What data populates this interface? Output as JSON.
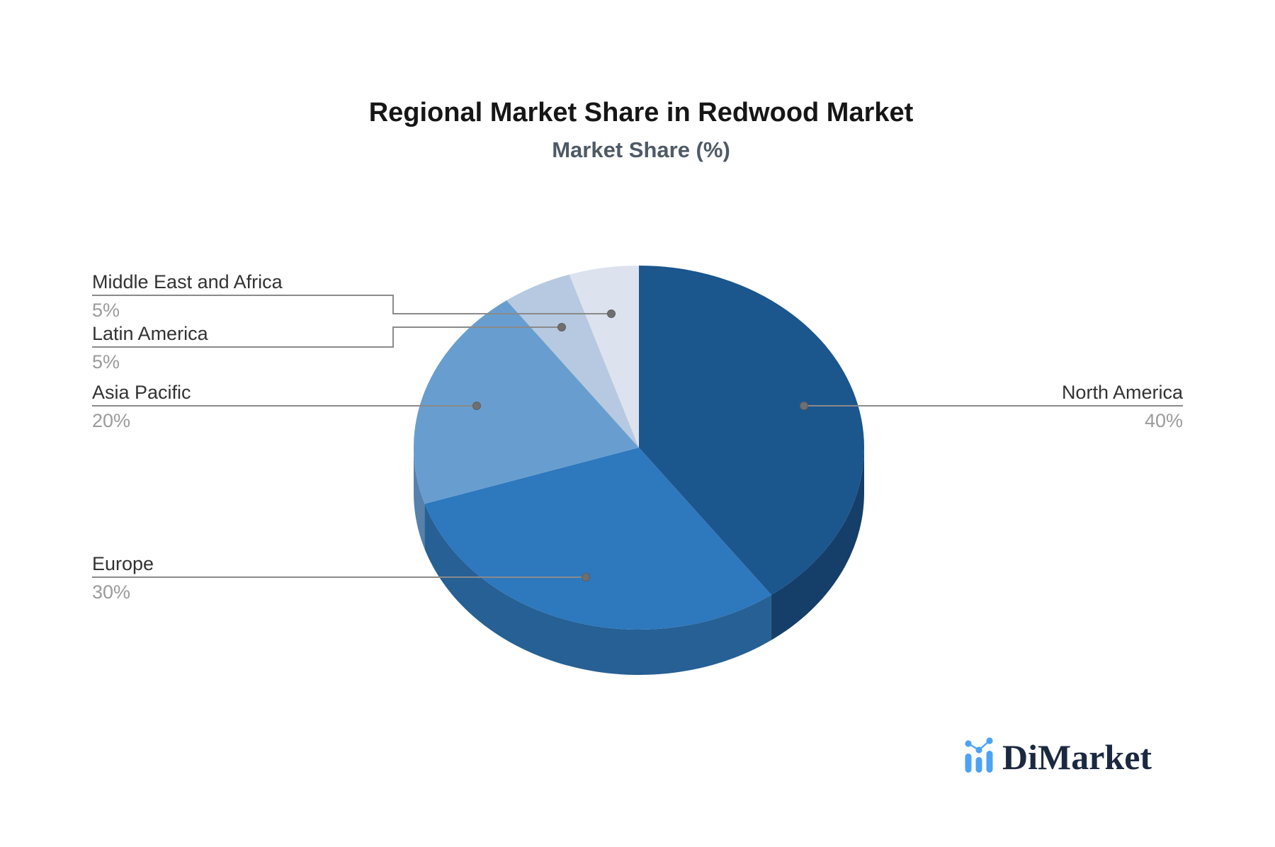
{
  "title": "Regional Market Share in Redwood Market",
  "subtitle": "Market Share (%)",
  "logo": {
    "text": "DiMarket",
    "icon": "bar-chart-trend-icon",
    "icon_color": "#4da3f3",
    "text_color": "#1b2940"
  },
  "palette": {
    "background": "#ffffff",
    "title_color": "#161616",
    "subtitle_color": "#4e5a66",
    "label_color": "#323232",
    "value_color": "#9b9b9b",
    "leader_line_color": "#8a8a8a",
    "leader_dot_color": "#6f6f6f"
  },
  "chart_data": {
    "type": "pie",
    "style": "3d",
    "title": "Regional Market Share in Redwood Market",
    "subtitle": "Market Share (%)",
    "unit": "%",
    "start_angle_deg": 0,
    "direction": "clockwise",
    "legend_position": "callout-labels",
    "series": [
      {
        "label": "North America",
        "value": 40,
        "pct_label": "40%",
        "color": "#1b568d",
        "side_color": "#153f69"
      },
      {
        "label": "Europe",
        "value": 30,
        "pct_label": "30%",
        "color": "#2e78bd",
        "side_color": "#266094"
      },
      {
        "label": "Asia Pacific",
        "value": 20,
        "pct_label": "20%",
        "color": "#689ecf",
        "side_color": "#5581ab"
      },
      {
        "label": "Latin America",
        "value": 5,
        "pct_label": "5%",
        "color": "#b6c9e0",
        "side_color": "#8fa8c4"
      },
      {
        "label": "Middle East and Africa",
        "value": 5,
        "pct_label": "5%",
        "color": "#dce3ee",
        "side_color": "#b3bfd1"
      }
    ]
  }
}
